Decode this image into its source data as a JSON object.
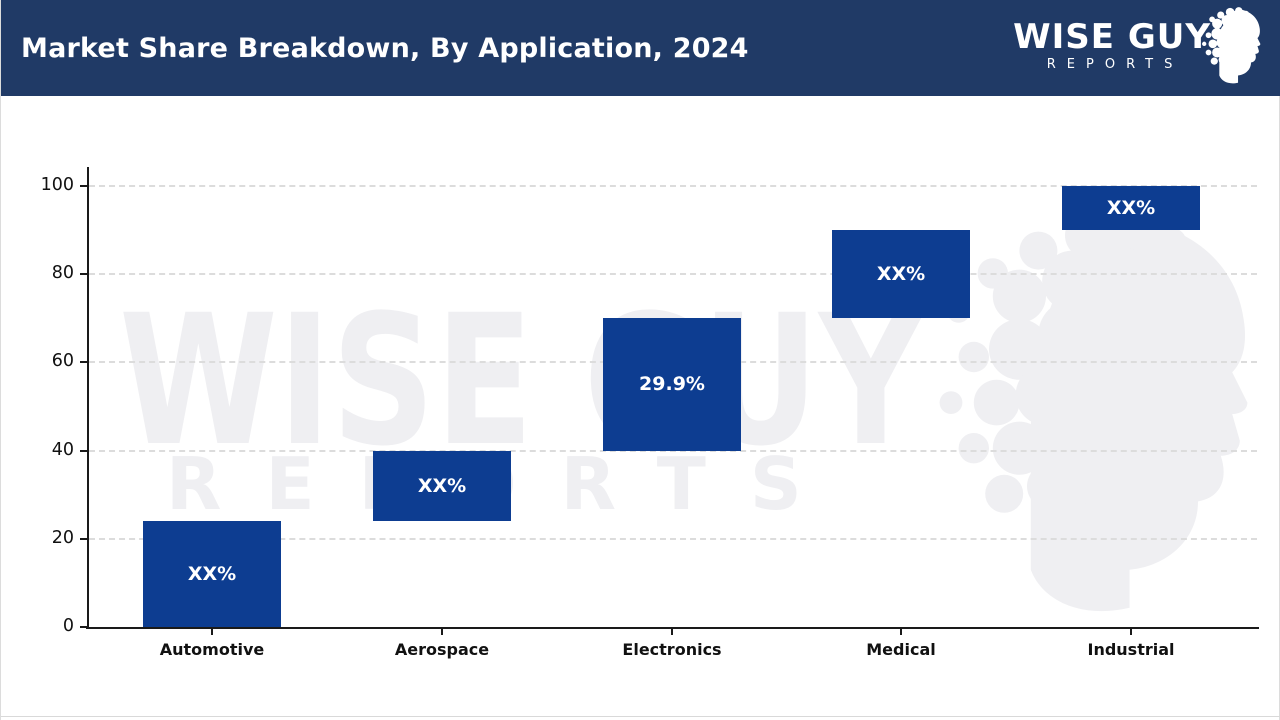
{
  "header": {
    "title": "Market Share Breakdown, By Application, 2024",
    "logo": {
      "line1": "WISE GUY",
      "line2": "REPORTS"
    }
  },
  "watermark": {
    "line1": "WISE GUY",
    "line2": "REPORTS"
  },
  "colors": {
    "header_bg": "#203a66",
    "bar": "#0d3d91",
    "grid": "#dcdcdc",
    "axis": "#1a1a1a",
    "watermark": "#efeff2"
  },
  "chart_data": {
    "type": "bar",
    "subtype": "waterfall",
    "title": "Market Share Breakdown, By Application, 2024",
    "categories": [
      "Automotive",
      "Aerospace",
      "Electronics",
      "Medical",
      "Industrial"
    ],
    "segments": [
      {
        "category": "Automotive",
        "start": 0,
        "end": 24,
        "label": "XX%"
      },
      {
        "category": "Aerospace",
        "start": 24,
        "end": 40,
        "label": "XX%"
      },
      {
        "category": "Electronics",
        "start": 40,
        "end": 70,
        "label": "29.9%"
      },
      {
        "category": "Medical",
        "start": 70,
        "end": 90,
        "label": "XX%"
      },
      {
        "category": "Industrial",
        "start": 90,
        "end": 100,
        "label": "XX%"
      }
    ],
    "yticks": [
      0,
      20,
      40,
      60,
      80,
      100
    ],
    "ylim": [
      0,
      100
    ],
    "xlabel": "",
    "ylabel": "",
    "grid": "horizontal-dashed",
    "legend": "none",
    "bar_color": "#0d3d91"
  }
}
